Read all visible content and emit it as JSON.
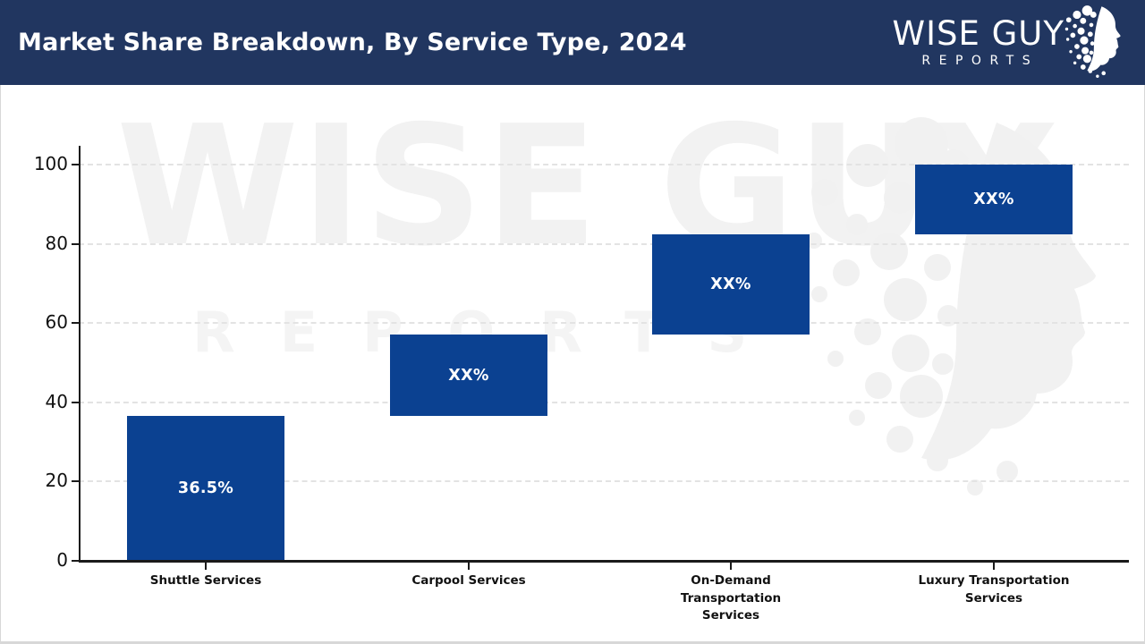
{
  "header": {
    "title": "Market Share Breakdown, By Service Type, 2024",
    "logo": {
      "line1": "WISE GUY",
      "line2": "REPORTS"
    },
    "bg_color": "#213660"
  },
  "watermark": {
    "line1": "WISE GUY",
    "line2": "REPORTS"
  },
  "chart_data": {
    "type": "bar",
    "subtype": "waterfall",
    "title": "Market Share Breakdown, By Service Type, 2024",
    "categories": [
      "Shuttle Services",
      "Carpool Services",
      "On-Demand Transportation Services",
      "Luxury Transportation Services"
    ],
    "segments": [
      {
        "category": "Shuttle Services",
        "start": 0,
        "end": 36.5,
        "label": "36.5%"
      },
      {
        "category": "Carpool Services",
        "start": 36.5,
        "end": 57,
        "label": "XX%"
      },
      {
        "category": "On-Demand Transportation Services",
        "start": 57,
        "end": 82.5,
        "label": "XX%"
      },
      {
        "category": "Luxury Transportation Services",
        "start": 82.5,
        "end": 100,
        "label": "XX%"
      }
    ],
    "y_ticks": [
      0,
      20,
      40,
      60,
      80,
      100
    ],
    "ylim": [
      0,
      105
    ],
    "xlabel": "",
    "ylabel": "",
    "bar_color": "#0b4191",
    "bar_label_color": "#ffffff",
    "grid": "horizontal-dashed",
    "legend": "none"
  }
}
